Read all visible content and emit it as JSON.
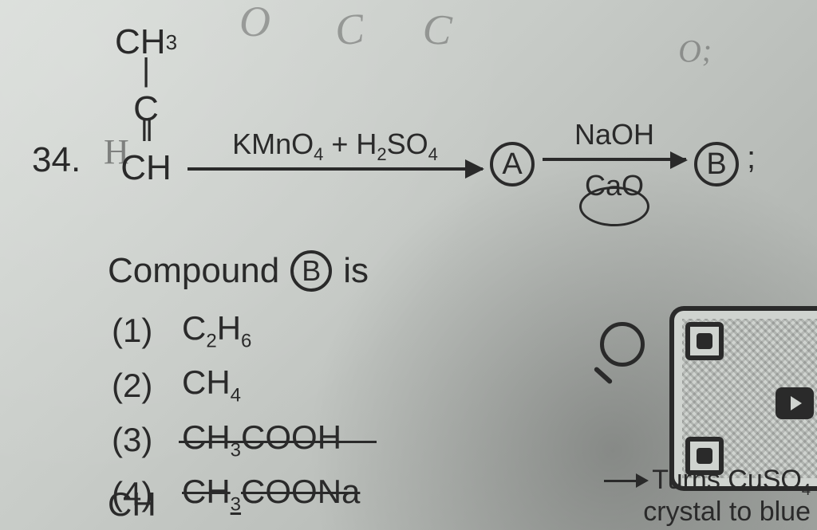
{
  "question_number": "34.",
  "molecule": {
    "line1_pre": "CH",
    "line1_sub": "3",
    "bond_top": "|",
    "line2": "C",
    "line3": "CH",
    "sm_near_c": "H"
  },
  "reaction1": {
    "reagent_pre": "KMnO",
    "reagent_sub1": "4",
    "reagent_mid": " + H",
    "reagent_sub2": "2",
    "reagent_post": "SO",
    "reagent_sub3": "4"
  },
  "compound_a": "A",
  "reaction2": {
    "top": "NaOH",
    "bottom": "CaO"
  },
  "compound_b": "B",
  "semicolon": ";",
  "prompt_pre": "Compound",
  "prompt_circ": "B",
  "prompt_post": "is",
  "options": [
    {
      "num": "(1)",
      "formula_pre": "C",
      "s1": "2",
      "mid": "H",
      "s2": "6",
      "struck": false
    },
    {
      "num": "(2)",
      "formula_pre": "CH",
      "s1": "4",
      "mid": "",
      "s2": "",
      "struck": false
    },
    {
      "num": "(3)",
      "formula_pre": "CH",
      "s1": "3",
      "mid": "COOH",
      "s2": "",
      "struck": true
    },
    {
      "num": "(4)",
      "formula_pre": "CH",
      "s1": "3",
      "mid": "COONa",
      "s2": "",
      "struck": true
    }
  ],
  "bottom_right_line1_pre": "Turns CuSO",
  "bottom_right_line1_sub": "4",
  "bottom_right_line2": "crystal to blue",
  "bottom_left_pre": "CH",
  "smudges": {
    "s1": "O",
    "s2": "C",
    "s3": "C",
    "s4": "O;"
  },
  "colors": {
    "text": "#2a2a2a",
    "bg1": "#d8dcd8",
    "bg2": "#a8aca8"
  }
}
